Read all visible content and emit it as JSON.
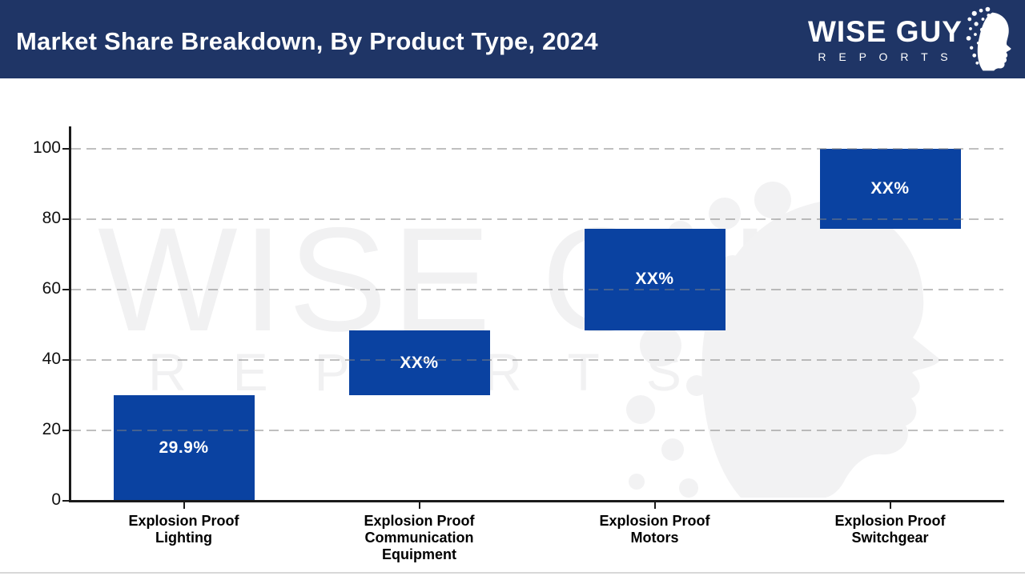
{
  "header": {
    "title": "Market Share Breakdown, By Product Type, 2024",
    "logo": {
      "name_line": "WISE GUY",
      "sub_line": "R E P O R T S"
    },
    "bg_color": "#1f3566"
  },
  "watermark": {
    "name_line": "WISE GU",
    "sub_line": "REPORTS"
  },
  "chart_data": {
    "type": "bar",
    "variant": "waterfall",
    "title": "Market Share Breakdown, By Product Type, 2024",
    "xlabel": "",
    "ylabel": "",
    "ylim": [
      0,
      100
    ],
    "yticks": [
      0,
      20,
      40,
      60,
      80,
      100
    ],
    "grid": "horizontal dashed",
    "legend": "none",
    "bar_color": "#0a42a1",
    "bars": [
      {
        "category": "Explosion Proof Lighting",
        "category_lines": [
          "Explosion Proof",
          "Lighting"
        ],
        "label": "29.9%",
        "start": 0,
        "end": 29.9
      },
      {
        "category": "Explosion Proof Communication Equipment",
        "category_lines": [
          "Explosion Proof",
          "Communication",
          "Equipment"
        ],
        "label": "XX%",
        "start": 29.9,
        "end": 48.5
      },
      {
        "category": "Explosion Proof Motors",
        "category_lines": [
          "Explosion Proof",
          "Motors"
        ],
        "label": "XX%",
        "start": 48.5,
        "end": 77.3
      },
      {
        "category": "Explosion Proof Switchgear",
        "category_lines": [
          "Explosion Proof",
          "Switchgear"
        ],
        "label": "XX%",
        "start": 77.3,
        "end": 100
      }
    ]
  }
}
